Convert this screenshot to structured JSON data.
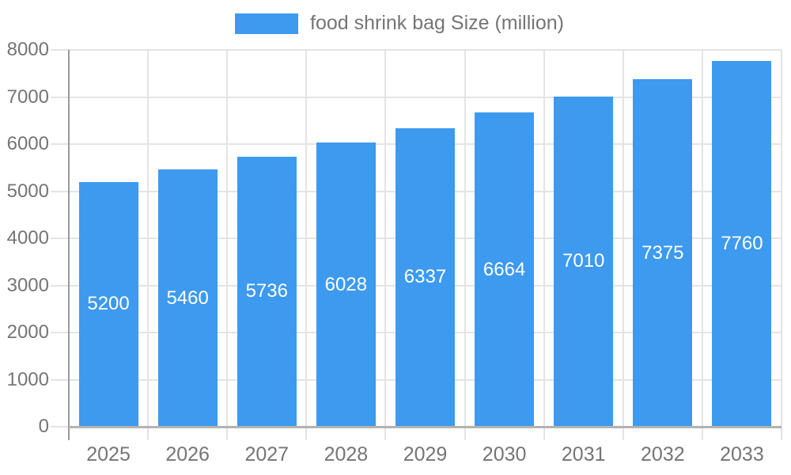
{
  "legend": {
    "label": "food shrink bag Size (million)"
  },
  "chart_data": {
    "type": "bar",
    "title": "",
    "xlabel": "",
    "ylabel": "",
    "categories": [
      "2025",
      "2026",
      "2027",
      "2028",
      "2029",
      "2030",
      "2031",
      "2032",
      "2033"
    ],
    "series": [
      {
        "name": "food shrink bag Size (million)",
        "values": [
          5200,
          5460,
          5736,
          6028,
          6337,
          6664,
          7010,
          7375,
          7760
        ]
      }
    ],
    "bar_labels_shown": true,
    "ylim": [
      0,
      8000
    ],
    "y_ticks": [
      0,
      1000,
      2000,
      3000,
      4000,
      5000,
      6000,
      7000,
      8000
    ],
    "grid": true,
    "legend_position": "top",
    "colors": {
      "bar": "#3D9AEE",
      "bar_label": "#FFFFFF",
      "gridline": "#E4E4E4",
      "baseline": "#B3B3B3",
      "axis_line": "#9A9A9A",
      "text": "#757575",
      "background": "#FFFFFF"
    }
  }
}
